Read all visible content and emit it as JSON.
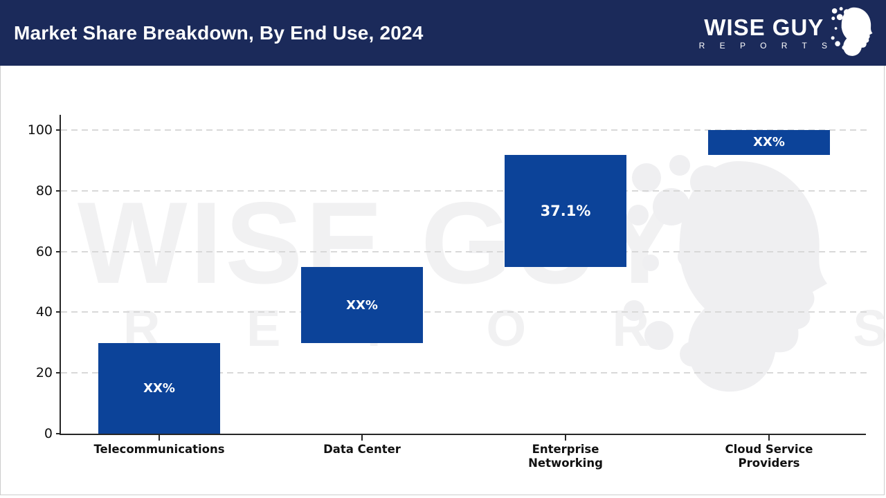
{
  "header": {
    "title": "Market Share Breakdown, By End Use, 2024",
    "bg_color": "#1b2a5a",
    "logo": {
      "wordmark": "WISE GUY",
      "subtext": "R E P O R T S"
    }
  },
  "watermark": {
    "wordmark": "WISE GUY",
    "subtext": "R E P O R T S"
  },
  "chart_data": {
    "type": "bar",
    "subtype": "waterfall",
    "title": "Market Share Breakdown, By End Use, 2024",
    "categories": [
      "Telecommunications",
      "Data Center",
      "Enterprise Networking",
      "Cloud Service Providers"
    ],
    "categories_display": [
      "Telecommunications",
      "Data Center",
      "Enterprise\nNetworking",
      "Cloud Service\nProviders"
    ],
    "segment_starts": [
      0,
      29.9,
      54.8,
      91.9
    ],
    "segment_ends": [
      29.9,
      54.8,
      91.9,
      100
    ],
    "values": [
      29.9,
      24.9,
      37.1,
      8.1
    ],
    "bar_labels": [
      "XX%",
      "XX%",
      "37.1%",
      "XX%"
    ],
    "yticks": [
      0,
      20,
      40,
      60,
      80,
      100
    ],
    "ylim": [
      0,
      105
    ],
    "xlabel": "",
    "ylabel": "",
    "grid": "horizontal-dashed",
    "legend": "none",
    "bar_color": "#0c4399",
    "label_color": "#ffffff"
  }
}
